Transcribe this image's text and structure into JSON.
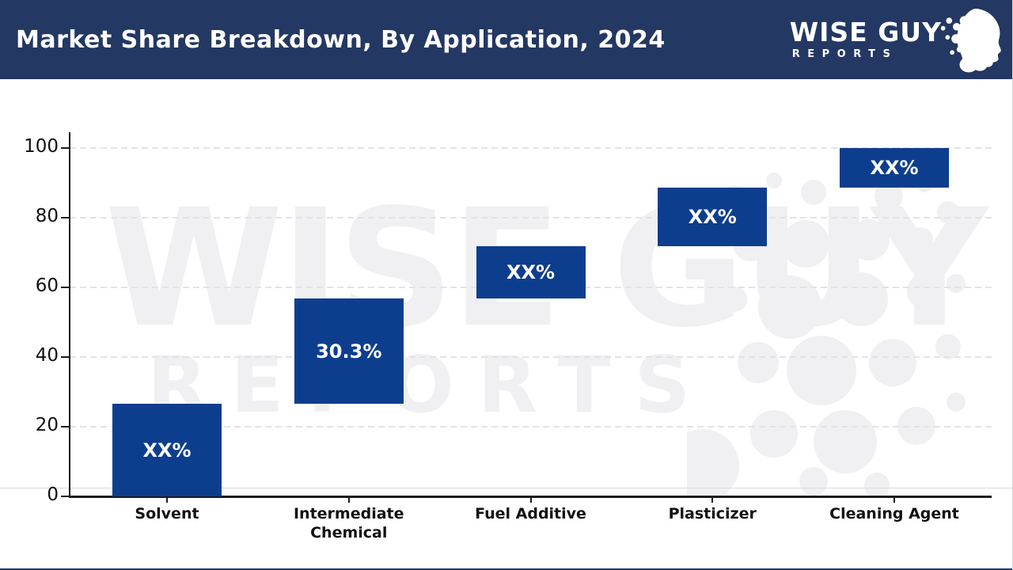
{
  "header": {
    "title": "Market Share Breakdown, By Application, 2024",
    "logo": {
      "name_top": "WISE GUY",
      "name_bottom": "REPORTS"
    }
  },
  "watermark": {
    "line1": "WISE GUY",
    "line2": "REPORTS"
  },
  "colors": {
    "header_bg": "#233862",
    "bar_fill": "#0d3e8e",
    "bar_label_text": "#ffffff",
    "axis": "#1b1b1b",
    "gridline": "#e3e3e3",
    "tick_label": "#111111",
    "watermark": "#f0f0f2"
  },
  "chart_data": {
    "type": "bar",
    "subtype": "waterfall",
    "title": "Market Share Breakdown, By Application, 2024",
    "categories": [
      "Solvent",
      "Intermediate Chemical",
      "Fuel Additive",
      "Plasticizer",
      "Cleaning Agent"
    ],
    "segments": [
      {
        "category": "Solvent",
        "start": 0,
        "end": 26.5,
        "value_label": "XX%"
      },
      {
        "category": "Intermediate Chemical",
        "start": 26.5,
        "end": 56.8,
        "value_label": "30.3%"
      },
      {
        "category": "Fuel Additive",
        "start": 56.8,
        "end": 71.9,
        "value_label": "XX%"
      },
      {
        "category": "Plasticizer",
        "start": 71.9,
        "end": 88.6,
        "value_label": "XX%"
      },
      {
        "category": "Cleaning Agent",
        "start": 88.6,
        "end": 100,
        "value_label": "XX%"
      }
    ],
    "yticks": [
      0,
      20,
      40,
      60,
      80,
      100
    ],
    "ylim": [
      0,
      104.5
    ],
    "xlabel": "",
    "ylabel": "",
    "grid": "horizontal-dashed",
    "legend": null
  }
}
